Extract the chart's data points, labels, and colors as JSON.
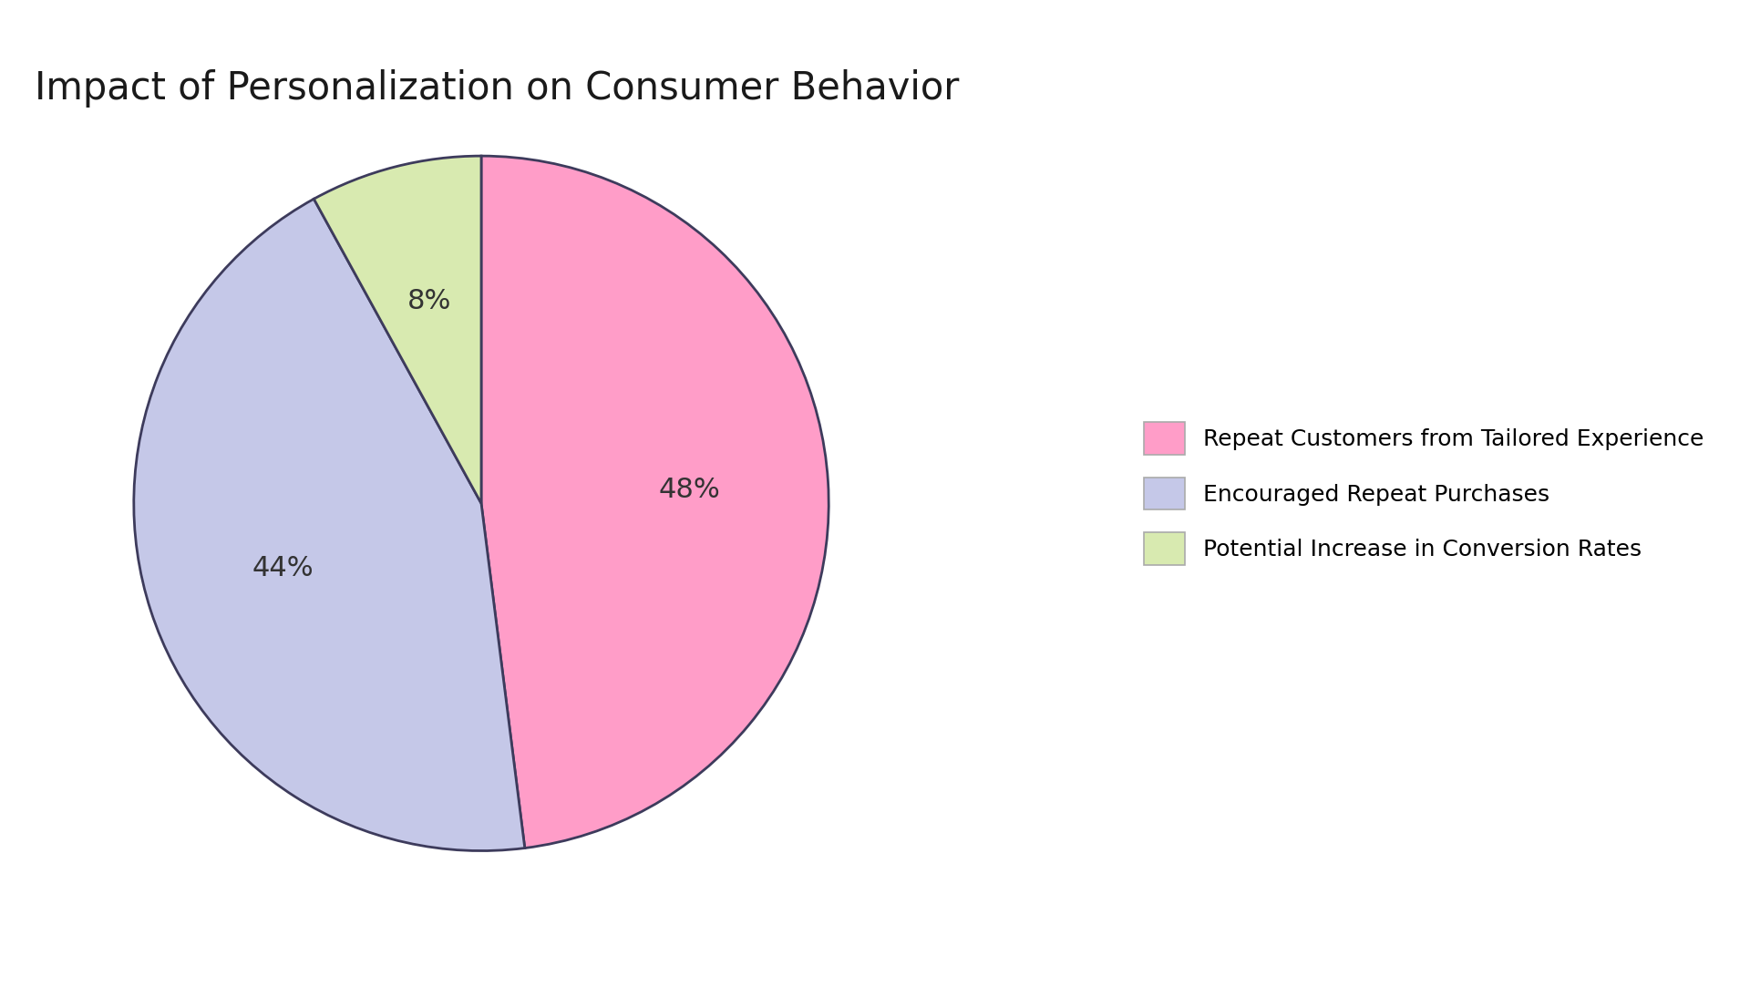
{
  "title": "Impact of Personalization on Consumer Behavior",
  "slices": [
    48,
    44,
    8
  ],
  "labels": [
    "Repeat Customers from Tailored Experience",
    "Encouraged Repeat Purchases",
    "Potential Increase in Conversion Rates"
  ],
  "colors": [
    "#FF9DC8",
    "#C5C8E8",
    "#D8EAB0"
  ],
  "edge_color": "#3D3B5C",
  "edge_width": 2.0,
  "background_color": "#FFFFFF",
  "title_fontsize": 30,
  "legend_fontsize": 18,
  "autopct_fontsize": 22,
  "startangle": 90,
  "counterclock": false,
  "pctdistance": 0.6
}
